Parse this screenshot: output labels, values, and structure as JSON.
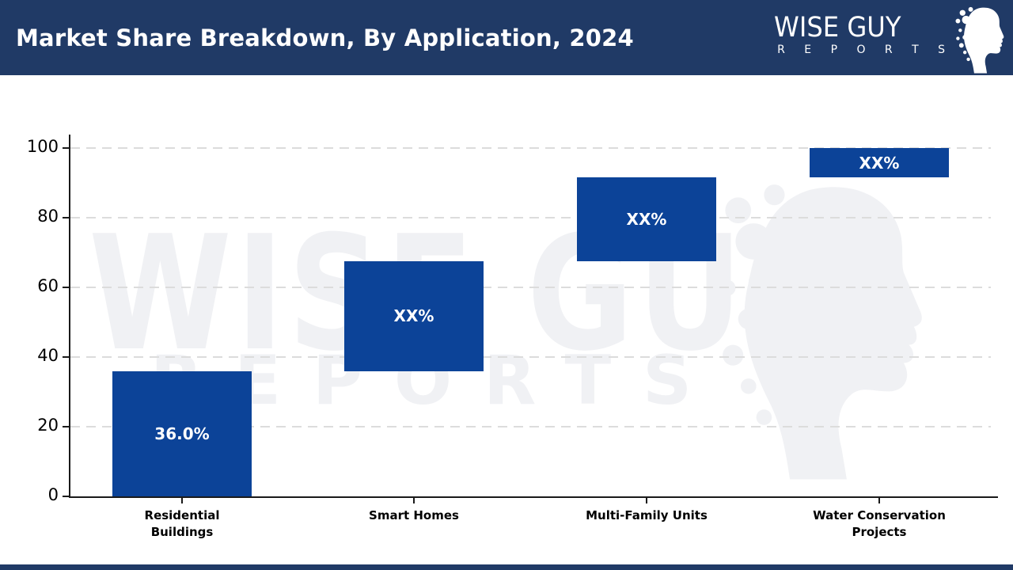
{
  "header": {
    "title": "Market Share Breakdown, By Application, 2024",
    "brand": {
      "name_line": "WISE GUY",
      "sub_line": "R E P O R T S"
    }
  },
  "watermark": {
    "name_line": "WISE GUY",
    "sub_line": "REPORTS"
  },
  "footer": {},
  "colors": {
    "header_bg": "#203a66",
    "footer_bg": "#203a66",
    "title_text": "#ffffff",
    "brand_text": "#ffffff",
    "bar_fill": "#0c4398",
    "bar_label": "#ffffff",
    "axis": "#1a1a1a",
    "grid": "#dcdcdc",
    "tick_label": "#000000",
    "watermark": "#f0f1f4"
  },
  "chart_data": {
    "type": "bar",
    "subtype": "waterfall-float",
    "title": "Market Share Breakdown, By Application, 2024",
    "categories": [
      "Residential\nBuildings",
      "Smart Homes",
      "Multi-Family Units",
      "Water Conservation\nProjects"
    ],
    "segments": [
      {
        "category": "Residential Buildings",
        "start": 0,
        "end": 36,
        "label": "36.0%"
      },
      {
        "category": "Smart Homes",
        "start": 36,
        "end": 67.5,
        "label": "XX%"
      },
      {
        "category": "Multi-Family Units",
        "start": 67.5,
        "end": 91.5,
        "label": "XX%"
      },
      {
        "category": "Water Conservation Projects",
        "start": 91.5,
        "end": 100,
        "label": "XX%"
      }
    ],
    "xlabel": "",
    "ylabel": "",
    "ylim": [
      0,
      100
    ],
    "yticks": [
      0,
      20,
      40,
      60,
      80,
      100
    ],
    "grid": {
      "horizontal": true,
      "style": "dashed"
    },
    "legend": null
  }
}
